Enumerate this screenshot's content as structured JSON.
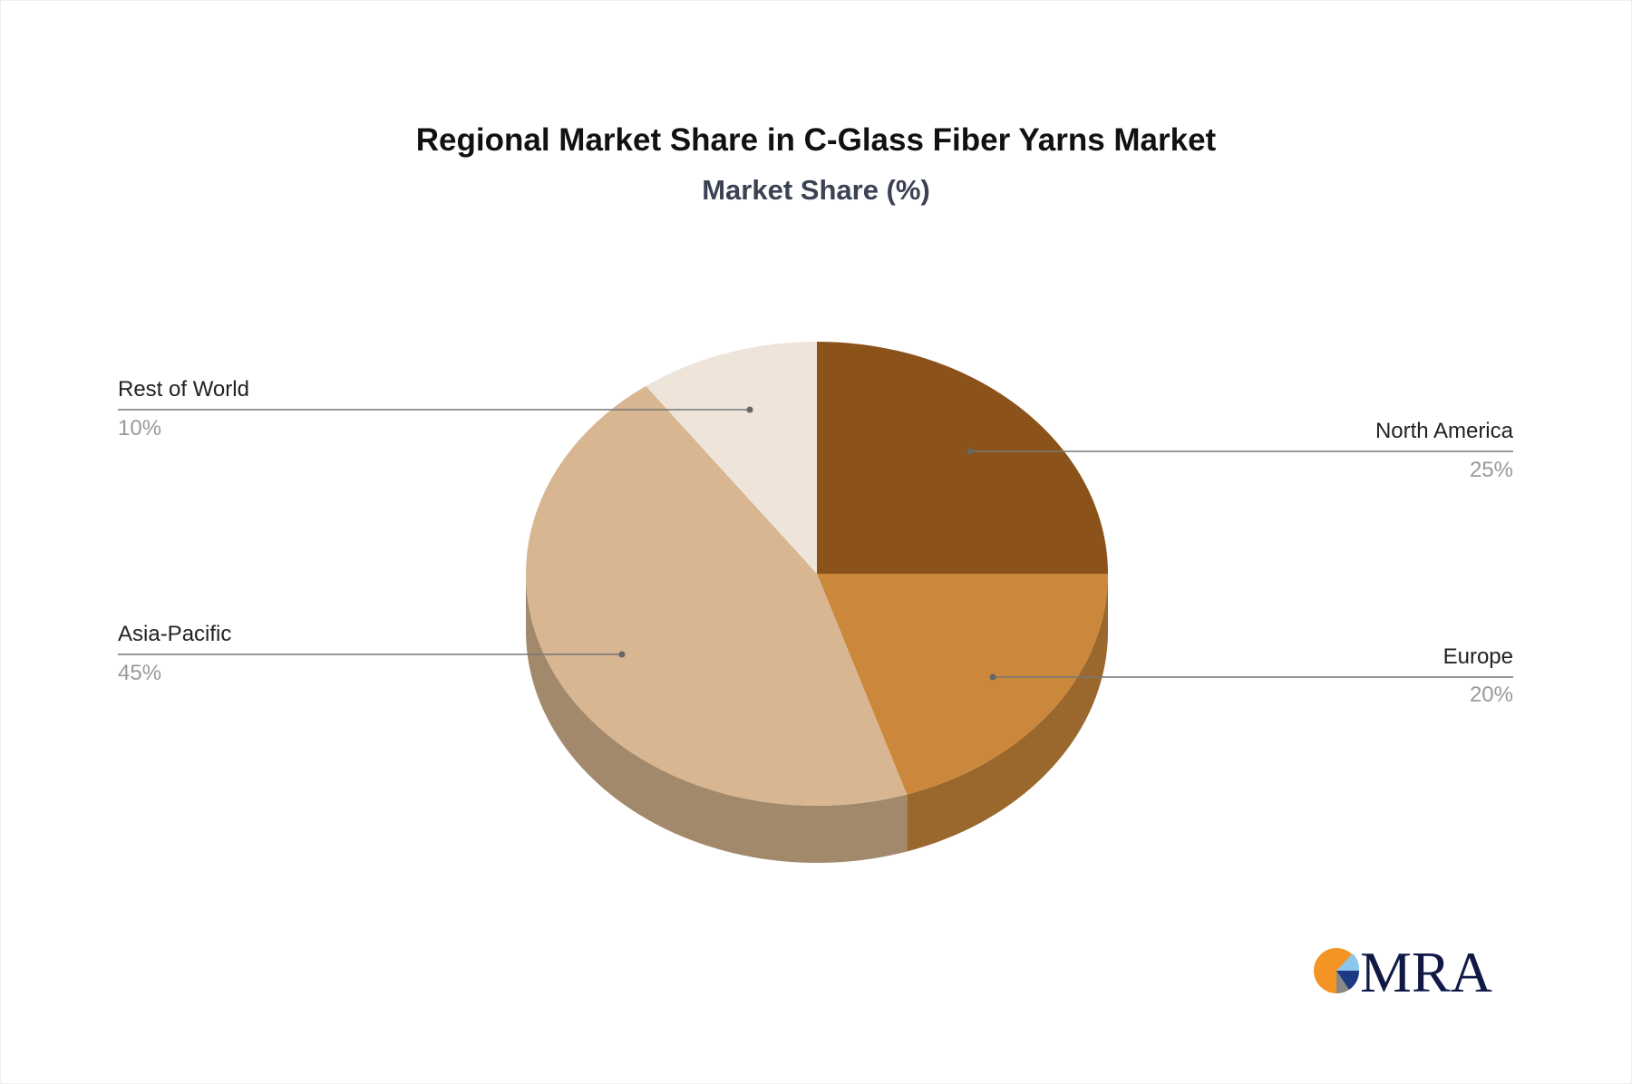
{
  "chart_data": {
    "type": "pie",
    "title": "Regional Market Share in C-Glass Fiber Yarns Market",
    "subtitle": "Market Share (%)",
    "slices": [
      {
        "label": "North America",
        "value": 25,
        "value_label": "25%",
        "color": "#8b5319",
        "side_color": "#6e4214"
      },
      {
        "label": "Europe",
        "value": 20,
        "value_label": "20%",
        "color": "#cb883d",
        "side_color": "#9a682c"
      },
      {
        "label": "Asia-Pacific",
        "value": 45,
        "value_label": "45%",
        "color": "#d7b691",
        "side_color": "#a3896b"
      },
      {
        "label": "Rest of World",
        "value": 10,
        "value_label": "10%",
        "color": "#efe4da",
        "side_color": "#bfb3a8"
      }
    ],
    "start_angle": "12 o'clock",
    "direction": "clockwise",
    "style": "3d"
  },
  "logo": {
    "text": "MRA"
  }
}
